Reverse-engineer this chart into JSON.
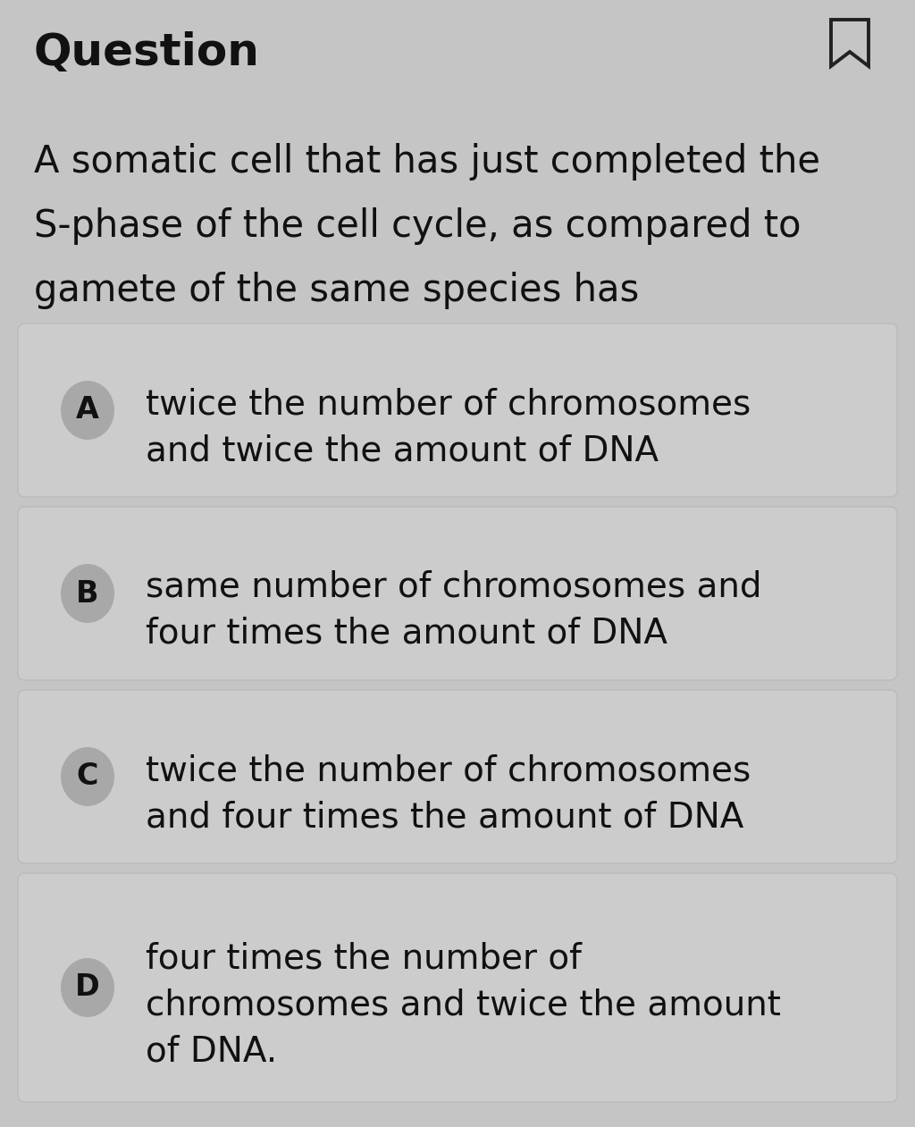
{
  "background_color": "#c5c5c5",
  "title": "Question",
  "question_text_lines": [
    "A somatic cell that has just completed the",
    "S-phase of the cell cycle, as compared to",
    "gamete of the same species has"
  ],
  "options": [
    {
      "label": "A",
      "lines": [
        "twice the number of chromosomes",
        "and twice the amount of DNA"
      ]
    },
    {
      "label": "B",
      "lines": [
        "same number of chromosomes and",
        "four times the amount of DNA"
      ]
    },
    {
      "label": "C",
      "lines": [
        "twice the number of chromosomes",
        "and four times the amount of DNA"
      ]
    },
    {
      "label": "D",
      "lines": [
        "four times the number of",
        "chromosomes and twice the amount",
        "of DNA."
      ]
    }
  ],
  "card_facecolor": "#cccccc",
  "card_edgecolor": "#b8b8b8",
  "title_fontsize": 36,
  "question_fontsize": 30,
  "option_fontsize": 28,
  "label_fontsize": 24,
  "text_color": "#111111",
  "label_bg": "#a8a8a8",
  "label_text_color": "#111111",
  "bookmark_color": "#222222"
}
